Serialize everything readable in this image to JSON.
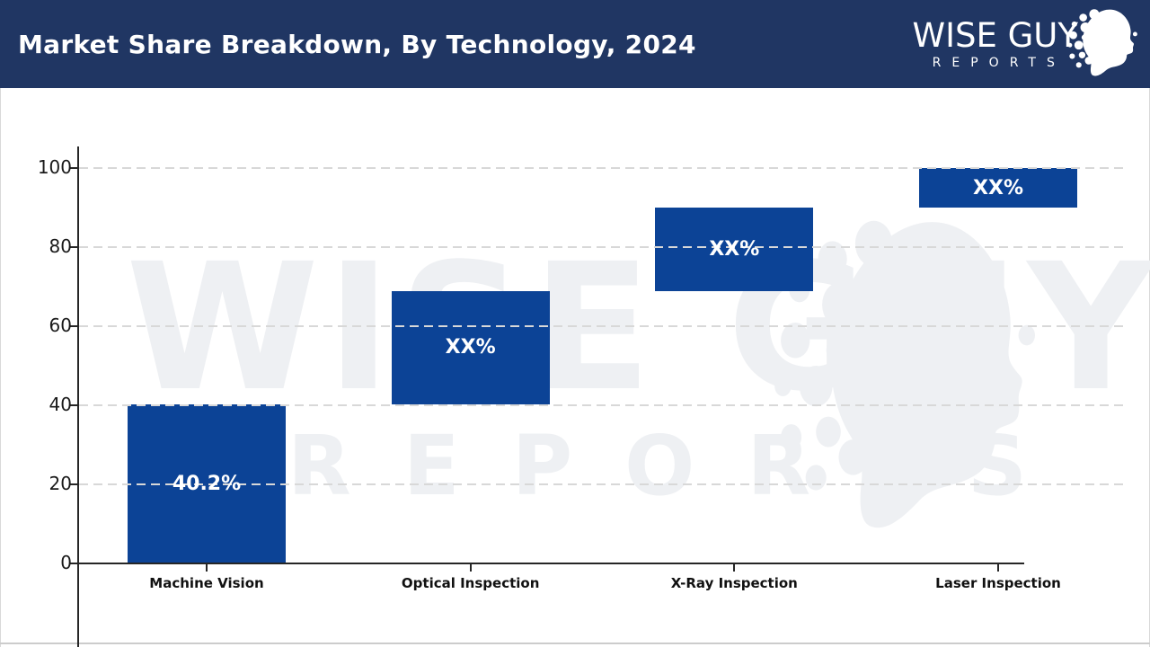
{
  "header": {
    "title": "Market Share Breakdown, By Technology, 2024",
    "logo": {
      "line1": "WISE GUY",
      "line2": "REPORTS"
    }
  },
  "watermark": {
    "line1": "WISE GUY",
    "line2": "REPORTS"
  },
  "chart_data": {
    "type": "bar",
    "subtype": "waterfall",
    "title": "Market Share Breakdown, By Technology, 2024",
    "categories": [
      "Machine Vision",
      "Optical Inspection",
      "X-Ray Inspection",
      "Laser Inspection"
    ],
    "segments": [
      {
        "category": "Machine Vision",
        "start": 0,
        "end": 40.2,
        "label": "40.2%"
      },
      {
        "category": "Optical Inspection",
        "start": 40.2,
        "end": 68.9,
        "label": "XX%"
      },
      {
        "category": "X-Ray Inspection",
        "start": 68.9,
        "end": 90,
        "label": "XX%"
      },
      {
        "category": "Laser Inspection",
        "start": 90,
        "end": 100,
        "label": "XX%"
      }
    ],
    "yticks": [
      0,
      20,
      40,
      60,
      80,
      100
    ],
    "ylim": [
      0,
      105
    ],
    "xlabel": "",
    "ylabel": "",
    "grid": "horizontal-dashed",
    "legend": "none",
    "bar_color": "#0c4396",
    "bar_label_color": "#ffffff"
  },
  "colors": {
    "header_bg": "#203663",
    "accent_blue": "#0c4396",
    "watermark": "#eef0f3",
    "gridline": "#d8d8d8",
    "axis": "#262626"
  }
}
